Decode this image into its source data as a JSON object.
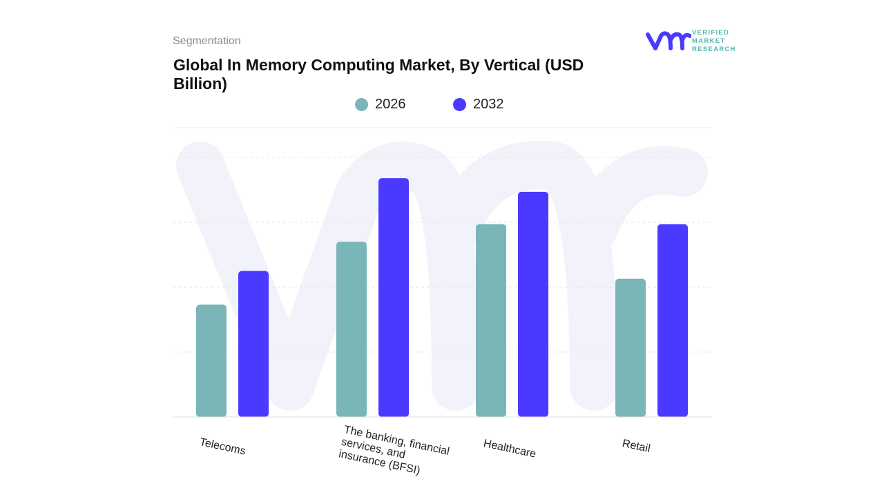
{
  "header": {
    "segment_label": "Segmentation",
    "title": "Global In Memory Computing Market, By Vertical (USD Billion)"
  },
  "logo": {
    "text_lines": [
      "VERIFIED",
      "MARKET",
      "RESEARCH"
    ],
    "brand_color": "#4a3aff",
    "text_color": "#4fb6ad"
  },
  "chart_data": {
    "type": "bar",
    "title": "Global In Memory Computing Market, By Vertical (USD Billion)",
    "categories": [
      "Telecoms",
      "The banking, financial services, and insurance (BFSI)",
      "Healthcare",
      "Retail"
    ],
    "series": [
      {
        "name": "2026",
        "color": "#7ab5b8",
        "values": [
          1.73,
          2.7,
          2.97,
          2.13
        ]
      },
      {
        "name": "2032",
        "color": "#4a3aff",
        "values": [
          2.25,
          3.68,
          3.47,
          2.97
        ]
      }
    ],
    "ylim": [
      0,
      4
    ],
    "grid": true,
    "y_tick_labels_shown": false,
    "legend_position": "top"
  }
}
